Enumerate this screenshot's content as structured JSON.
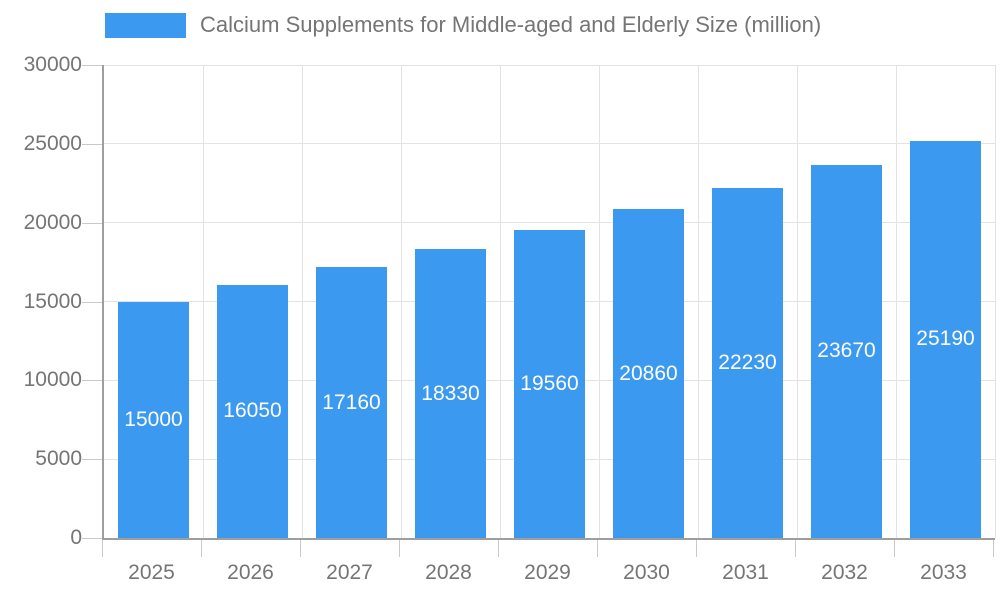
{
  "chart_data": {
    "type": "bar",
    "title": "",
    "legend": "Calcium Supplements for Middle-aged and Elderly Size (million)",
    "legend_position": "top-left",
    "categories": [
      "2025",
      "2026",
      "2027",
      "2028",
      "2029",
      "2030",
      "2031",
      "2032",
      "2033"
    ],
    "values": [
      15000,
      16050,
      17160,
      18330,
      19560,
      20860,
      22230,
      23670,
      25190
    ],
    "value_labels": [
      "15000",
      "16050",
      "17160",
      "18330",
      "19560",
      "20860",
      "22230",
      "23670",
      "25190"
    ],
    "xlabel": "",
    "ylabel": "",
    "ylim": [
      0,
      30000
    ],
    "yticks": [
      0,
      5000,
      10000,
      15000,
      20000,
      25000,
      30000
    ],
    "grid": true,
    "colors": {
      "bar": "#3b99f0",
      "grid": "#e3e3e3",
      "axis": "#9e9e9e",
      "tick": "#c9c9c9",
      "axis_text": "#757575",
      "bar_label_text": "#ffffff",
      "background": "#ffffff"
    }
  }
}
